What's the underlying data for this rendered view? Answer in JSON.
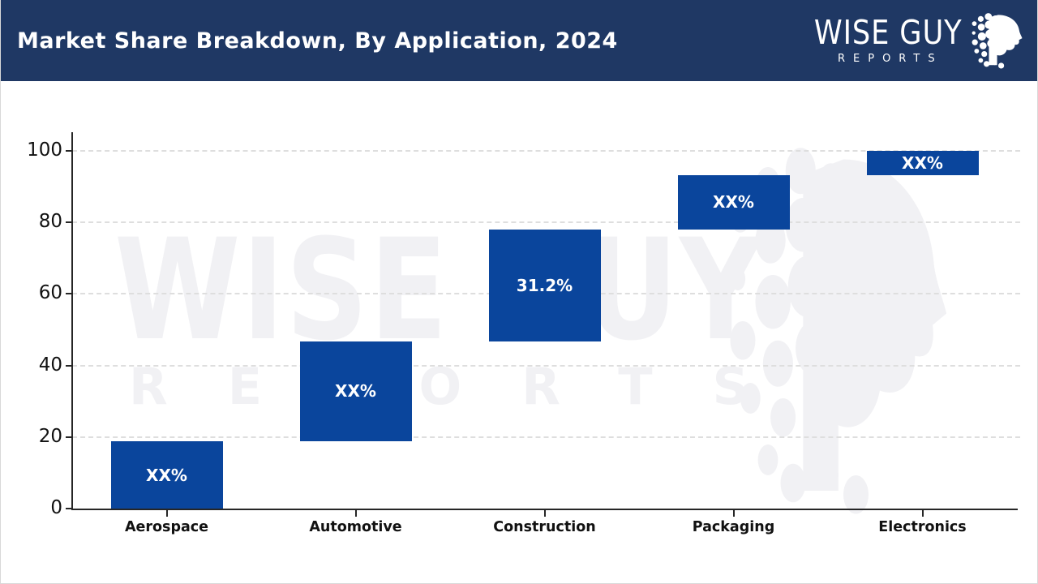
{
  "header": {
    "title": "Market Share Breakdown, By Application, 2024",
    "bg_color": "#1f3864",
    "logo": {
      "line1": "WISE GUY",
      "line2": "REPORTS"
    }
  },
  "watermark": {
    "line1": "WISE GUY",
    "line2": "REPORTS"
  },
  "chart_data": {
    "type": "bar",
    "subtype": "waterfall",
    "title": "Market Share Breakdown, By Application, 2024",
    "categories": [
      "Aerospace",
      "Automotive",
      "Construction",
      "Packaging",
      "Electronics"
    ],
    "segments": [
      {
        "category": "Aerospace",
        "start": 0,
        "end": 18.8,
        "label": "XX%"
      },
      {
        "category": "Automotive",
        "start": 18.8,
        "end": 46.8,
        "label": "XX%"
      },
      {
        "category": "Construction",
        "start": 46.8,
        "end": 78.0,
        "label": "31.2%"
      },
      {
        "category": "Packaging",
        "start": 78.0,
        "end": 93.3,
        "label": "XX%"
      },
      {
        "category": "Electronics",
        "start": 93.3,
        "end": 100.0,
        "label": "XX%"
      }
    ],
    "xlabel": "",
    "ylabel": "",
    "ylim": [
      0,
      105
    ],
    "yticks": [
      0,
      20,
      40,
      60,
      80,
      100
    ],
    "grid": "horizontal-dashed",
    "legend": "none",
    "bar_color": "#0a459c",
    "bar_label_color": "#ffffff",
    "axis_color": "#262626"
  }
}
